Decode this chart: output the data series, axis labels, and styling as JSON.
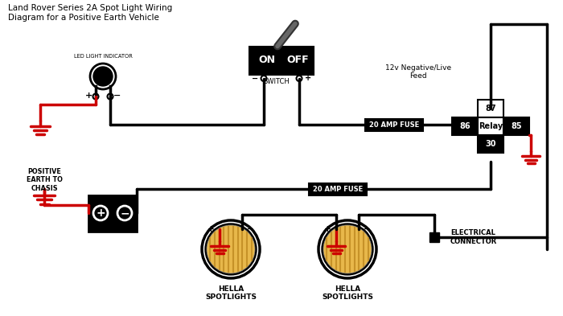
{
  "title": "Land Rover Series 2A Spot Light Wiring\nDiagram for a Positive Earth Vehicle",
  "bg_color": "#ffffff",
  "BK": "#000000",
  "RD": "#cc0000",
  "spotlight_fill": "#e8b84b",
  "spotlight_stripe": "#b8821a",
  "led_label": "LED LIGHT INDICATOR",
  "switch_label": "SWITCH",
  "fuse_label": "20 AMP FUSE",
  "relay_labels": [
    "87",
    "86",
    "Relay",
    "85",
    "30"
  ],
  "conn_label": "ELECTRICAL\nCONNECTOR",
  "feed_label": "12v Negative/Live\nFeed",
  "bat_label_pos": "POSITIVE\nEARTH TO\nCHASIS",
  "spot_label": "HELLA\nSPOTLIGHTS"
}
